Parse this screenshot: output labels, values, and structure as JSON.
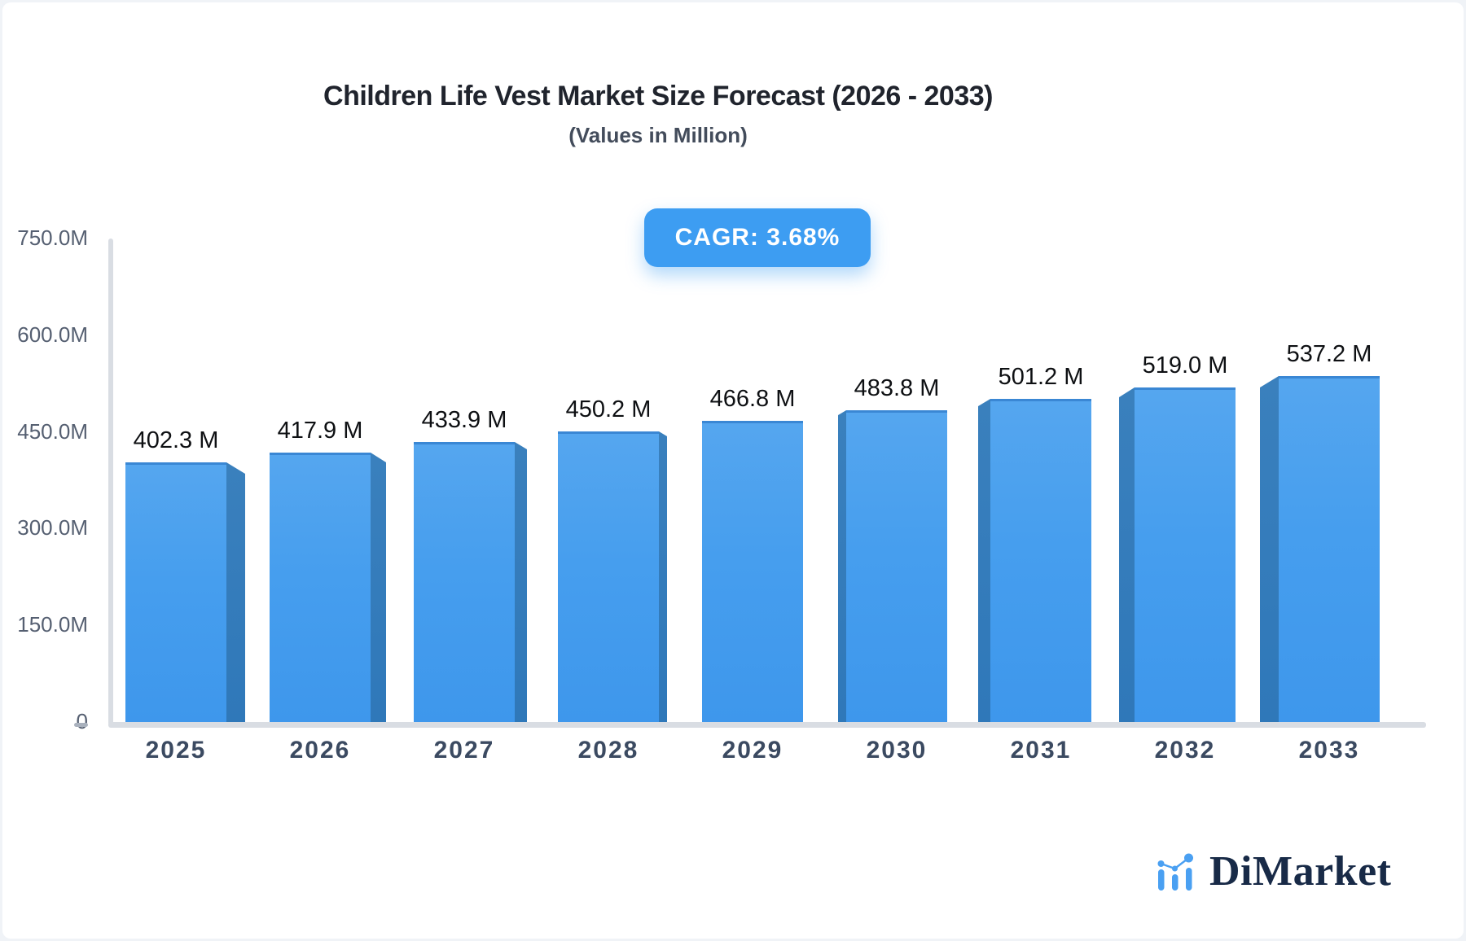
{
  "page": {
    "background": "#f0f3f7",
    "card_background": "#ffffff"
  },
  "header": {
    "title": "Children Life Vest Market Size Forecast (2026 - 2033)",
    "subtitle": "(Values in Million)"
  },
  "cagr_badge": {
    "label": "CAGR: 3.68%",
    "background": "#3d9df2",
    "text_color": "#ffffff"
  },
  "chart_data": {
    "type": "bar",
    "title": "Children Life Vest Market Size Forecast (2026 - 2033)",
    "subtitle": "(Values in Million)",
    "categories": [
      "2025",
      "2026",
      "2027",
      "2028",
      "2029",
      "2030",
      "2031",
      "2032",
      "2033"
    ],
    "values": [
      402.3,
      417.9,
      433.9,
      450.2,
      466.8,
      483.8,
      501.2,
      519.0,
      537.2
    ],
    "bar_labels": [
      "402.3 M",
      "417.9 M",
      "433.9 M",
      "450.2 M",
      "466.8 M",
      "483.8 M",
      "501.2 M",
      "519.0 M",
      "537.2 M"
    ],
    "xlabel": "",
    "ylabel": "",
    "ylim": [
      0,
      750
    ],
    "ytick_values": [
      750,
      600,
      450,
      300,
      150,
      0
    ],
    "ytick_labels": [
      "750.0M",
      "600.0M",
      "450.0M",
      "300.0M",
      "150.0M",
      "0"
    ],
    "grid": false,
    "legend_position": "none",
    "bar_style": {
      "effect": "3d-perspective",
      "face_gradient_top": "#55a6ef",
      "face_gradient_bottom": "#3e97ec",
      "side_face": "#2f78b9",
      "top_edge": "#3a87d4"
    }
  },
  "footer_logo": {
    "text": "DiMarket",
    "icon": "dimarket-bar-chart-icon",
    "icon_color": "#4aa0f2",
    "text_color": "#182a47"
  }
}
